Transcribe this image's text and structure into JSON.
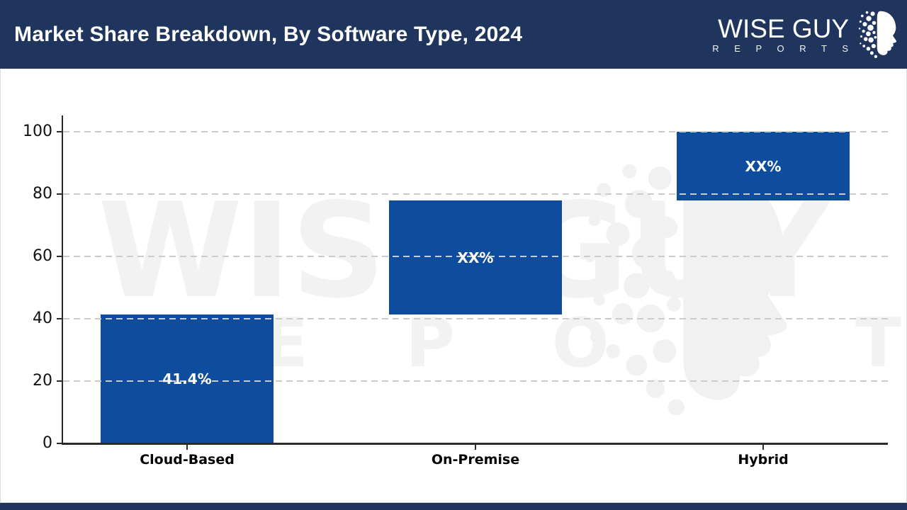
{
  "header": {
    "title": "Market Share Breakdown, By Software Type, 2024",
    "logo": {
      "line1": "WISE GUY",
      "line2": "R E P O R T S"
    }
  },
  "watermark": {
    "line1": "WISE GUY",
    "line2": "R E P O R T S"
  },
  "colors": {
    "navy": "#1f355d",
    "bar": "#0e4c9e",
    "grid": "#cccccc",
    "axis": "#2a2a2a",
    "watermark": "#f2f2f2",
    "bar_label_text": "#ffffff"
  },
  "chart_data": {
    "type": "bar",
    "subtype": "waterfall-stacked-segments",
    "title": "Market Share Breakdown, By Software Type, 2024",
    "categories": [
      "Cloud-Based",
      "On-Premise",
      "Hybrid"
    ],
    "bars": [
      {
        "category": "Cloud-Based",
        "start": 0,
        "end": 41.4,
        "label": "41.4%"
      },
      {
        "category": "On-Premise",
        "start": 41.4,
        "end": 77.9,
        "label": "XX%"
      },
      {
        "category": "Hybrid",
        "start": 77.9,
        "end": 100,
        "label": "XX%"
      }
    ],
    "xlabel": "",
    "ylabel": "",
    "y_ticks": [
      0,
      20,
      40,
      60,
      80,
      100
    ],
    "ylim": [
      0,
      105
    ],
    "grid": "horizontal dashed, drawn over bars",
    "legend": false,
    "bar_color": "#0e4c9e",
    "value_label_color": "#ffffff"
  }
}
